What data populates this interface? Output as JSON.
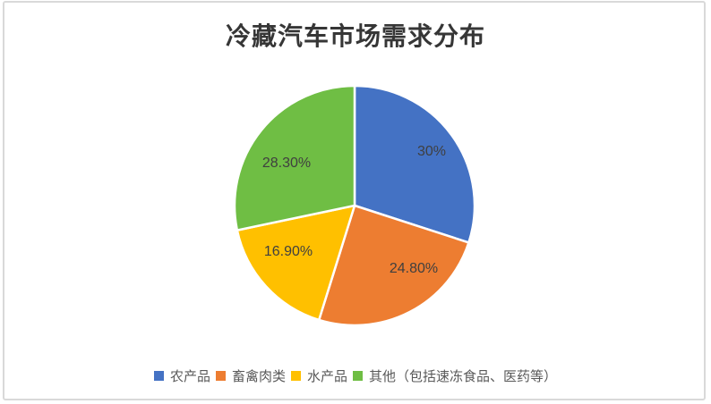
{
  "title": "冷藏汽车市场需求分布",
  "chart_data": {
    "type": "pie",
    "title": "冷藏汽车市场需求分布",
    "start_angle_deg": 0,
    "direction": "clockwise",
    "legend_position": "bottom",
    "grid": false,
    "slices": [
      {
        "label": "农产品",
        "value": 30,
        "display": "30%",
        "color": "#4472C4"
      },
      {
        "label": "畜禽肉类",
        "value": 24.8,
        "display": "24.80%",
        "color": "#ED7D31"
      },
      {
        "label": "水产品",
        "value": 16.9,
        "display": "16.90%",
        "color": "#FFC000"
      },
      {
        "label": "其他（包括速冻食品、医药等）",
        "value": 28.3,
        "display": "28.30%",
        "color": "#6FBE44"
      }
    ],
    "colors": {
      "title_text": "#363636",
      "data_label_text": "#3f3f3f",
      "legend_text": "#595959",
      "slice_border": "#ffffff",
      "frame_border": "#d9d9d9",
      "background": "#ffffff"
    }
  }
}
